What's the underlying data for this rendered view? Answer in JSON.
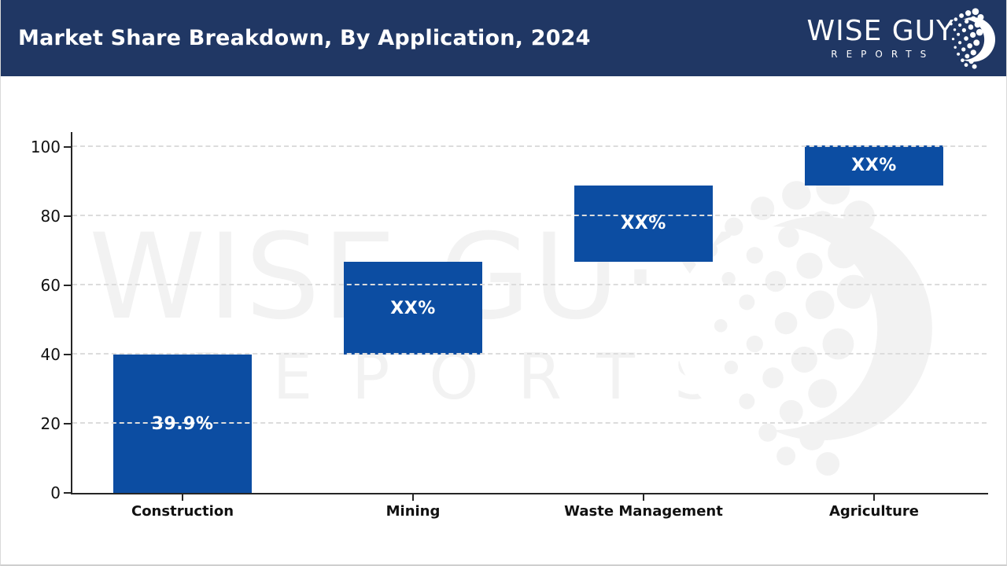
{
  "header": {
    "title": "Market Share Breakdown, By Application, 2024",
    "logo": {
      "wordmark": "WISE GUY",
      "subtitle": "REPORTS"
    }
  },
  "watermark": {
    "wordmark": "WISE GU·Y",
    "subtitle": "REPORTS"
  },
  "chart_data": {
    "type": "bar",
    "subtype": "waterfall",
    "title": "Market Share Breakdown, By Application, 2024",
    "categories": [
      "Construction",
      "Mining",
      "Waste Management",
      "Agriculture"
    ],
    "segments": [
      {
        "category": "Construction",
        "start": 0,
        "end": 39.9,
        "label": "39.9%"
      },
      {
        "category": "Mining",
        "start": 39.9,
        "end": 66.9,
        "label": "XX%"
      },
      {
        "category": "Waste Management",
        "start": 66.9,
        "end": 88.9,
        "label": "XX%"
      },
      {
        "category": "Agriculture",
        "start": 88.9,
        "end": 100.5,
        "label": "XX%"
      }
    ],
    "yticks": [
      0,
      20,
      40,
      60,
      80,
      100
    ],
    "ylim": [
      0,
      104
    ],
    "xlabel": "",
    "ylabel": "",
    "grid": "horizontal-dashed",
    "legend": "none",
    "bar_color": "#0c4da2",
    "bar_label_color": "#ffffff"
  },
  "colors": {
    "header_bg": "#203764",
    "bar": "#0c4da2",
    "grid": "#dcdcdc",
    "axis": "#262626",
    "watermark": "#f2f2f2",
    "page_border": "#cccccc"
  }
}
